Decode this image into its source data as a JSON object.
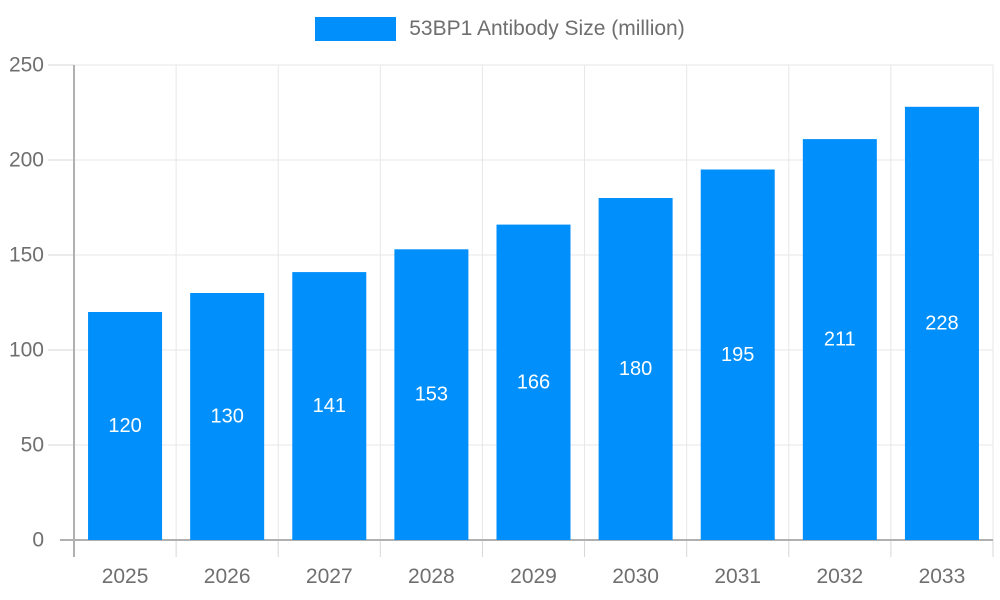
{
  "chart_data": {
    "type": "bar",
    "title": "",
    "categories": [
      "2025",
      "2026",
      "2027",
      "2028",
      "2029",
      "2030",
      "2031",
      "2032",
      "2033"
    ],
    "series": [
      {
        "name": "53BP1 Antibody Size (million)",
        "values": [
          120,
          130,
          141,
          153,
          166,
          180,
          195,
          211,
          228
        ]
      }
    ],
    "xlabel": "",
    "ylabel": "",
    "ylim": [
      0,
      250
    ],
    "yticks": [
      0,
      50,
      100,
      150,
      200,
      250
    ],
    "grid": true,
    "legend_position": "top-center",
    "data_labels": "inside-center-white",
    "colors": {
      "bar": "#008FFB",
      "grid": "#e7e7e7",
      "tick": "#d7d7d7",
      "axis": "#b0b0b0",
      "label": "#6f6f6f",
      "data_label": "#ffffff",
      "background": "#ffffff"
    }
  }
}
